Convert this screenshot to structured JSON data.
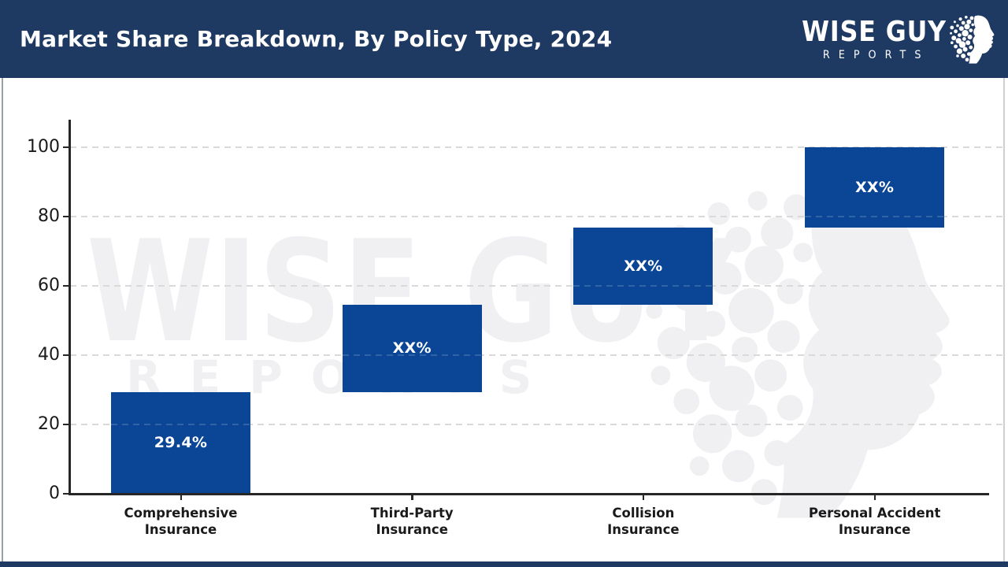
{
  "header": {
    "title": "Market Share Breakdown, By Policy Type, 2024",
    "logo": {
      "wordmark": "WISE GUY",
      "subtext": "REPORTS"
    }
  },
  "watermark": {
    "wordmark": "WISE GUY",
    "subtext": "REPORTS"
  },
  "colors": {
    "header_bg": "#1f3a62",
    "footer_bg": "#1f3a62",
    "bar": "#0a4596",
    "bar_label": "#ffffff",
    "grid": "#d9d9d9",
    "axis": "#262626",
    "tick_label": "#1a1a1a",
    "watermark": "#f0f0f3"
  },
  "chart_data": {
    "type": "bar",
    "subtype": "waterfall",
    "title": "Market Share Breakdown, By Policy Type, 2024",
    "xlabel": "",
    "ylabel": "",
    "ylim": [
      0,
      107
    ],
    "yticks": [
      0,
      20,
      40,
      60,
      80,
      100
    ],
    "grid": {
      "axis": "y",
      "style": "dashed"
    },
    "legend": "none",
    "categories": [
      {
        "line1": "Comprehensive",
        "line2": "Insurance"
      },
      {
        "line1": "Third-Party",
        "line2": "Insurance"
      },
      {
        "line1": "Collision",
        "line2": "Insurance"
      },
      {
        "line1": "Personal Accident",
        "line2": "Insurance"
      }
    ],
    "segments": [
      {
        "category": "Comprehensive Insurance",
        "start": 0,
        "end": 29.4,
        "value": 29.4,
        "label": "29.4%"
      },
      {
        "category": "Third-Party Insurance",
        "start": 29.4,
        "end": 54.5,
        "value": 25.1,
        "label": "XX%"
      },
      {
        "category": "Collision Insurance",
        "start": 54.5,
        "end": 76.8,
        "value": 22.3,
        "label": "XX%"
      },
      {
        "category": "Personal Accident Insurance",
        "start": 76.8,
        "end": 100,
        "value": 23.2,
        "label": "XX%"
      }
    ]
  }
}
